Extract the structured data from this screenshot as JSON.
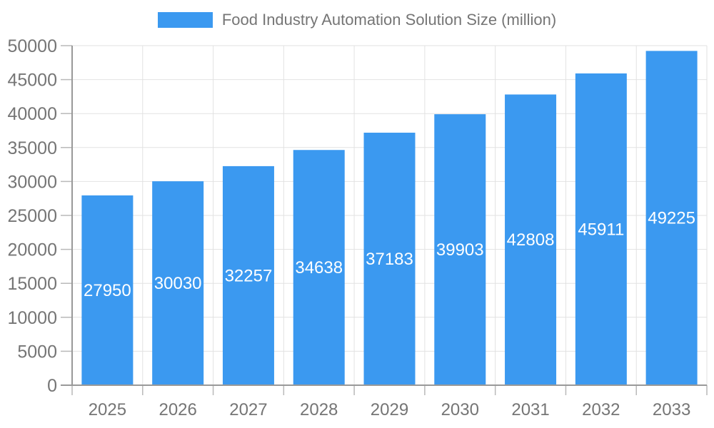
{
  "legend": {
    "label": "Food Industry Automation Solution Size (million)"
  },
  "chart_data": {
    "type": "bar",
    "title": "Food Industry Automation Solution Size (million)",
    "categories": [
      "2025",
      "2026",
      "2027",
      "2028",
      "2029",
      "2030",
      "2031",
      "2032",
      "2033"
    ],
    "values": [
      27950,
      30030,
      32257,
      34638,
      37183,
      39903,
      42808,
      45911,
      49225
    ],
    "xlabel": "",
    "ylabel": "",
    "ylim": [
      0,
      50000
    ],
    "ytick_step": 5000,
    "grid": true,
    "legend_position": "top-center",
    "value_label_position": "inside-center",
    "colors": {
      "bar": "#3b99f0",
      "gridline": "#e2e2e2",
      "axis_line": "#999999",
      "tick": "#b9b9b9",
      "axis_text": "#757575",
      "value_label_text": "#ffffff",
      "background": "#ffffff"
    }
  }
}
